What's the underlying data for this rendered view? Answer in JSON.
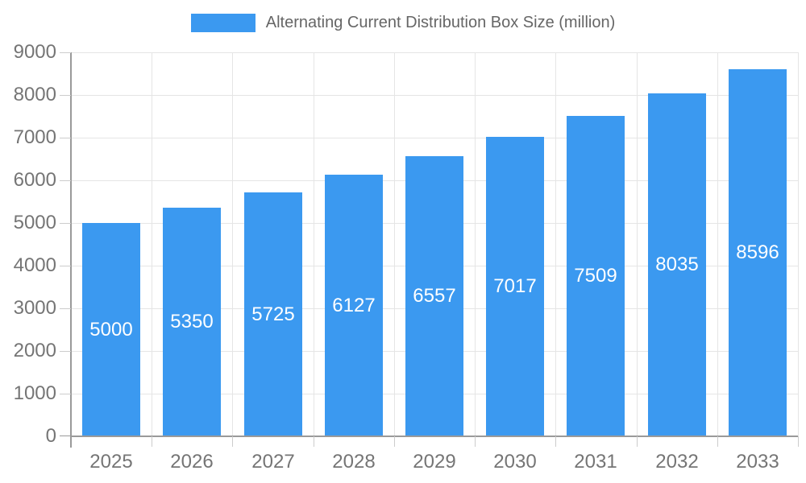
{
  "chart_data": {
    "type": "bar",
    "title": "Alternating Current Distribution Box Size (million)",
    "categories": [
      "2025",
      "2026",
      "2027",
      "2028",
      "2029",
      "2030",
      "2031",
      "2032",
      "2033"
    ],
    "values": [
      5000,
      5350,
      5725,
      6127,
      6557,
      7017,
      7509,
      8035,
      8596
    ],
    "bar_value_labels": [
      "5000",
      "5350",
      "5725",
      "6127",
      "6557",
      "7017",
      "7509",
      "8035",
      "8596"
    ],
    "xlabel": "",
    "ylabel": "",
    "ylim": [
      0,
      9000
    ],
    "y_ticks": [
      0,
      1000,
      2000,
      3000,
      4000,
      5000,
      6000,
      7000,
      8000,
      9000
    ],
    "y_tick_labels": [
      "0",
      "1000",
      "2000",
      "3000",
      "4000",
      "5000",
      "6000",
      "7000",
      "8000",
      "9000"
    ],
    "grid": true,
    "legend_position": "top-center",
    "colors": {
      "bar": "#3B99F0",
      "bar_label_text": "#FFFFFF",
      "axis_line": "#9A9A9A",
      "tick_line": "#CCCCCC",
      "gridline": "#E5E5E5",
      "axis_text": "#757575",
      "legend_text": "#666666",
      "background": "#FFFFFF"
    }
  }
}
